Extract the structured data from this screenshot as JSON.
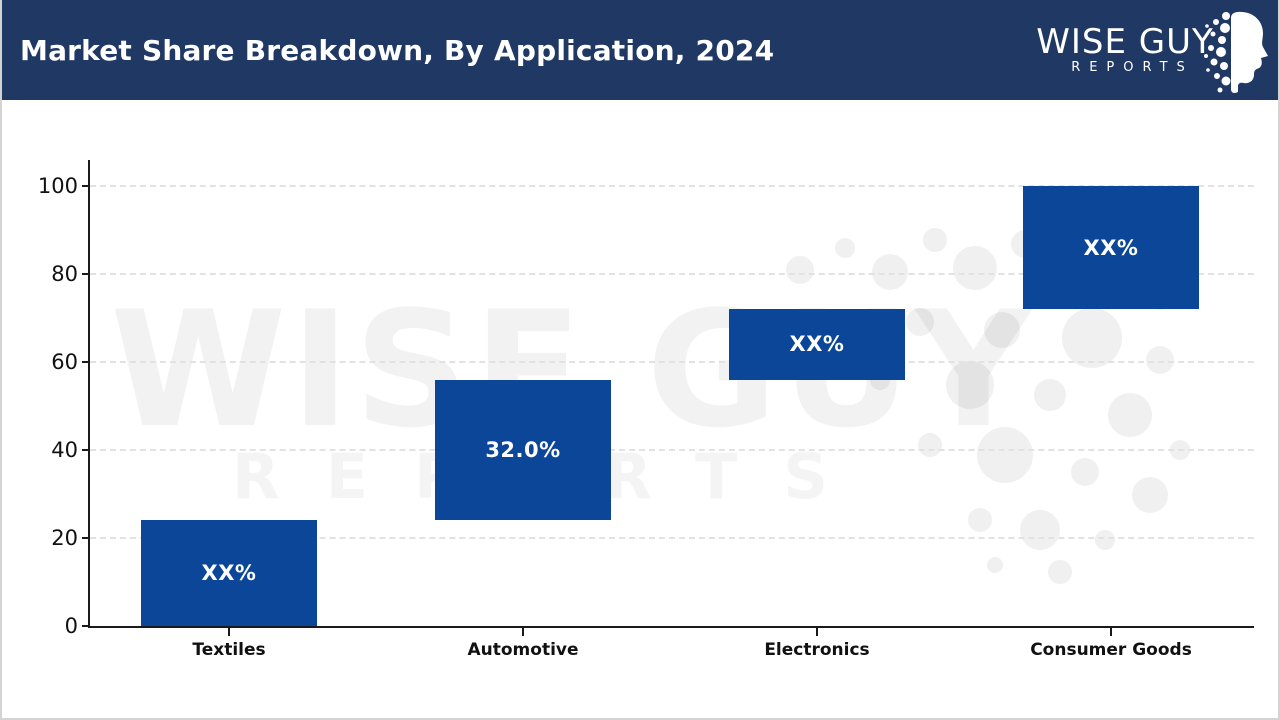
{
  "header": {
    "title": "Market Share Breakdown, By Application, 2024",
    "bg_color": "#1f3864",
    "logo": {
      "line1": "WISE GUY",
      "line2": "REPORTS"
    }
  },
  "watermark": {
    "line1": "WISE GUY",
    "line2": "REPORTS"
  },
  "chart_data": {
    "type": "bar",
    "subtype": "waterfall",
    "title": "Market Share Breakdown, By Application, 2024",
    "categories": [
      "Textiles",
      "Automotive",
      "Electronics",
      "Consumer Goods"
    ],
    "segments": [
      {
        "category": "Textiles",
        "start": 0,
        "end": 24,
        "value": 24,
        "label": "XX%"
      },
      {
        "category": "Automotive",
        "start": 24,
        "end": 56,
        "value": 32,
        "label": "32.0%"
      },
      {
        "category": "Electronics",
        "start": 56,
        "end": 72,
        "value": 16,
        "label": "XX%"
      },
      {
        "category": "Consumer Goods",
        "start": 72,
        "end": 100,
        "value": 28,
        "label": "XX%"
      }
    ],
    "yticks": [
      0,
      20,
      40,
      60,
      80,
      100
    ],
    "ylim": [
      0,
      106
    ],
    "xlabel": "",
    "ylabel": "",
    "grid": true,
    "legend": false,
    "bar_color": "#0b4699",
    "bar_label_color": "#ffffff",
    "axis_color": "#1a1a1a",
    "grid_color": "#e2e2e2"
  }
}
